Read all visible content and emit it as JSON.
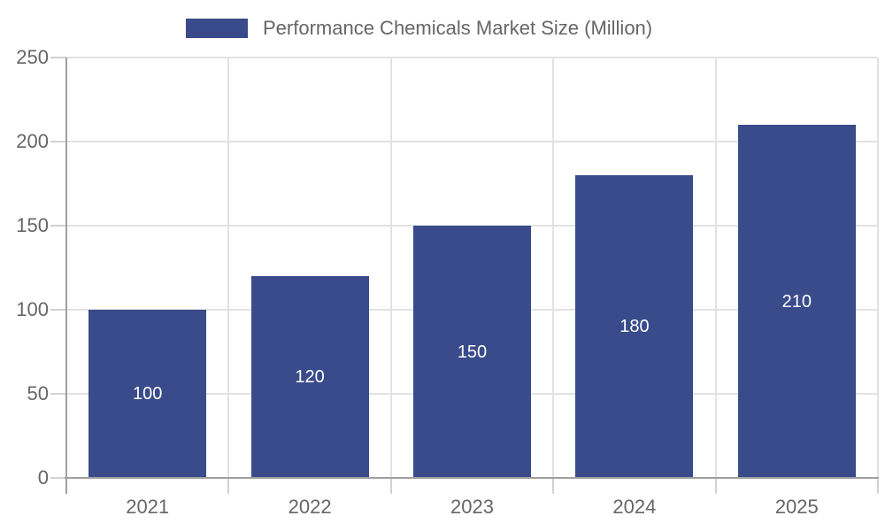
{
  "chart_data": {
    "type": "bar",
    "title": "Performance Chemicals Market Size (Million)",
    "legend": {
      "position": "top",
      "entries": [
        {
          "label": "Performance Chemicals Market Size (Million)",
          "color": "#394B8A"
        }
      ]
    },
    "categories": [
      "2021",
      "2022",
      "2023",
      "2024",
      "2025"
    ],
    "values": [
      100,
      120,
      150,
      180,
      210
    ],
    "value_labels": [
      "100",
      "120",
      "150",
      "180",
      "210"
    ],
    "xlabel": "",
    "ylabel": "",
    "ylim": [
      0,
      250
    ],
    "yticks": [
      0,
      50,
      100,
      150,
      200,
      250
    ],
    "grid": true,
    "colors": {
      "bar": "#394B8A",
      "grid_line": "#e2e2e2",
      "tick_mark": "#d2d2d2",
      "axis_line": "#a0a0a0",
      "tick_label": "#666666",
      "legend_label": "#666666",
      "value_label": "#ffffff",
      "background": "#ffffff"
    }
  }
}
